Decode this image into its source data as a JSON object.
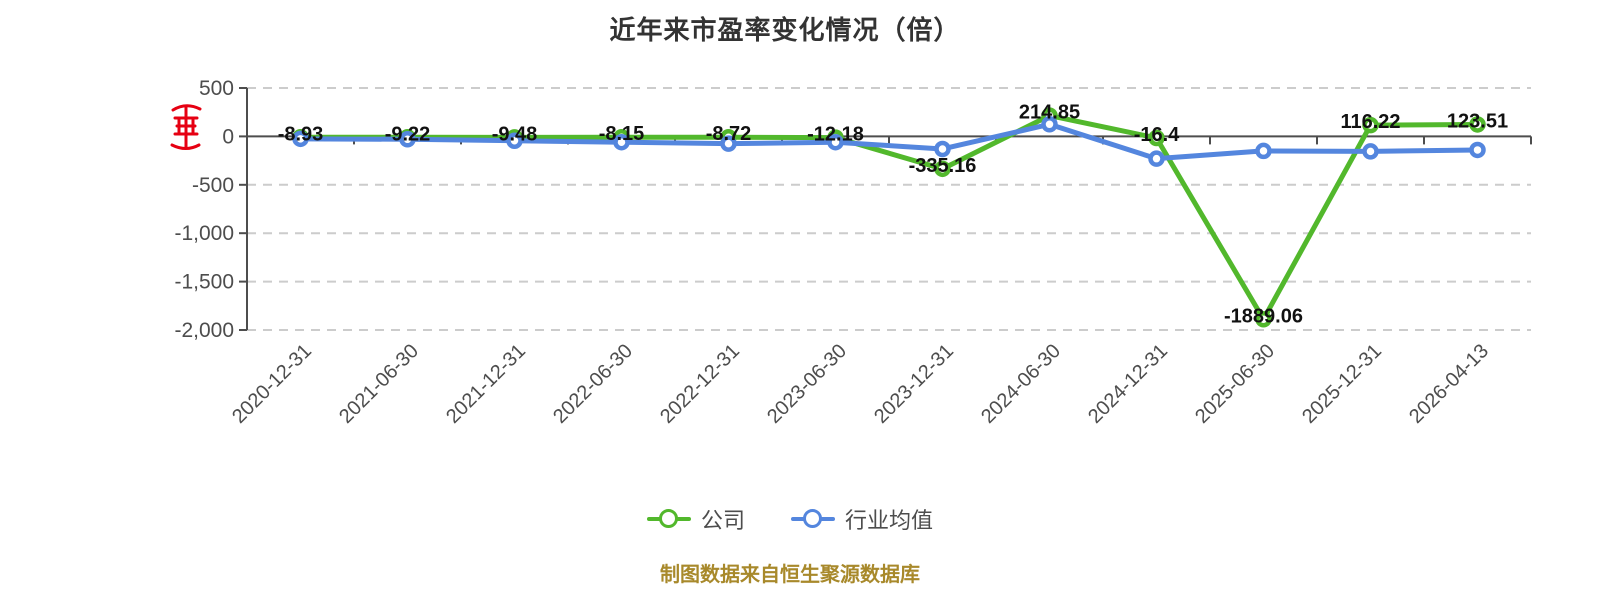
{
  "title": "近年来市盈率变化情况（倍）",
  "source_note": "制图数据来自恒生聚源数据库",
  "legend": {
    "items": [
      {
        "label": "公司",
        "color": "#52b82c"
      },
      {
        "label": "行业均值",
        "color": "#5486de"
      }
    ]
  },
  "y_axis": {
    "tick_labels": [
      "500",
      "0",
      "-500",
      "-1,000",
      "-1,500",
      "-2,000"
    ],
    "tick_values": [
      500,
      0,
      -500,
      -1000,
      -1500,
      -2000
    ]
  },
  "icons": {
    "y_axis_stamp": "red-seal-stamp-icon"
  },
  "colors": {
    "company_line": "#52b82c",
    "industry_line": "#5486de",
    "grid_line": "#cccccc",
    "axis_line": "#4d4d4d",
    "tick_text": "#4d4d4d",
    "data_label": "#111111",
    "title_text": "#333333",
    "source_text": "#a8892b",
    "seal_red": "#e60012"
  },
  "chart_data": {
    "type": "line",
    "title": "近年来市盈率变化情况（倍）",
    "categories": [
      "2020-12-31",
      "2021-06-30",
      "2021-12-31",
      "2022-06-30",
      "2022-12-31",
      "2023-06-30",
      "2023-12-31",
      "2024-06-30",
      "2024-12-31",
      "2025-06-30",
      "2025-12-31",
      "2026-04-13"
    ],
    "series": [
      {
        "name": "公司",
        "color": "#52b82c",
        "values": [
          -8.93,
          -9.22,
          -9.48,
          -8.15,
          -8.72,
          -12.18,
          -335.16,
          214.85,
          -16.4,
          -1889.06,
          116.22,
          123.51
        ],
        "labels": [
          "-8.93",
          "-9.22",
          "-9.48",
          "-8.15",
          "-8.72",
          "-12.18",
          "-335.16",
          "214.85",
          "-16.4",
          "-1889.06",
          "116.22",
          "123.51"
        ],
        "show_labels": true
      },
      {
        "name": "行业均值",
        "color": "#5486de",
        "values": [
          -25,
          -30,
          -45,
          -60,
          -75,
          -60,
          -130,
          125,
          -230,
          -150,
          -155,
          -140
        ],
        "values_estimated": true,
        "show_labels": false
      }
    ],
    "ylim": [
      -2000,
      500
    ],
    "xlabel": "",
    "ylabel": "",
    "grid": "horizontal-dashed",
    "zero_axis": true,
    "legend_position": "bottom",
    "marker": "circle-white-fill"
  }
}
